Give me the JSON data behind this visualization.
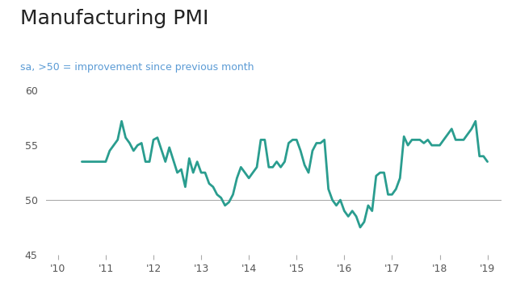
{
  "title": "Manufacturing PMI",
  "subtitle": "sa, >50 = improvement since previous month",
  "line_color": "#2a9d8f",
  "line_width": 2.0,
  "background_color": "#ffffff",
  "ylim": [
    45,
    60
  ],
  "yticks": [
    45,
    50,
    55,
    60
  ],
  "reference_line": 50,
  "title_fontsize": 18,
  "subtitle_fontsize": 9,
  "tick_label_color": "#555555",
  "subtitle_color": "#5b9bd5",
  "title_color": "#222222",
  "xtick_labels": [
    "'10",
    "'11",
    "'12",
    "'13",
    "'14",
    "'15",
    "'16",
    "'17",
    "'18",
    "'19"
  ],
  "xtick_positions": [
    2010,
    2011,
    2012,
    2013,
    2014,
    2015,
    2016,
    2017,
    2018,
    2019
  ],
  "dates": [
    2010.5,
    2011.0,
    2011.083,
    2011.25,
    2011.333,
    2011.417,
    2011.5,
    2011.583,
    2011.667,
    2011.75,
    2011.833,
    2011.917,
    2012.0,
    2012.083,
    2012.25,
    2012.333,
    2012.5,
    2012.583,
    2012.667,
    2012.75,
    2012.833,
    2012.917,
    2013.0,
    2013.083,
    2013.167,
    2013.25,
    2013.333,
    2013.417,
    2013.5,
    2013.583,
    2013.667,
    2013.75,
    2013.833,
    2013.917,
    2014.0,
    2014.083,
    2014.167,
    2014.25,
    2014.333,
    2014.417,
    2014.5,
    2014.583,
    2014.667,
    2014.75,
    2014.833,
    2014.917,
    2015.0,
    2015.083,
    2015.167,
    2015.25,
    2015.333,
    2015.417,
    2015.5,
    2015.583,
    2015.667,
    2015.75,
    2015.833,
    2015.917,
    2016.0,
    2016.083,
    2016.167,
    2016.25,
    2016.333,
    2016.417,
    2016.5,
    2016.583,
    2016.667,
    2016.75,
    2016.833,
    2016.917,
    2017.0,
    2017.083,
    2017.167,
    2017.25,
    2017.333,
    2017.417,
    2017.5,
    2017.583,
    2017.667,
    2017.75,
    2017.833,
    2017.917,
    2018.0,
    2018.083,
    2018.167,
    2018.25,
    2018.333,
    2018.417,
    2018.5,
    2018.583,
    2018.667,
    2018.75,
    2018.833,
    2018.917,
    2019.0
  ],
  "values": [
    53.5,
    53.5,
    54.5,
    55.5,
    57.2,
    55.7,
    55.2,
    54.5,
    55.0,
    55.2,
    53.5,
    53.5,
    55.5,
    55.7,
    53.5,
    54.8,
    52.5,
    52.8,
    51.2,
    53.8,
    52.5,
    53.5,
    52.5,
    52.5,
    51.5,
    51.2,
    50.5,
    50.2,
    49.5,
    49.8,
    50.5,
    52.0,
    53.0,
    52.5,
    52.0,
    52.5,
    53.0,
    55.5,
    55.5,
    53.0,
    53.0,
    53.5,
    53.0,
    53.5,
    55.2,
    55.5,
    55.5,
    54.5,
    53.2,
    52.5,
    54.5,
    55.2,
    55.2,
    55.5,
    51.0,
    50.0,
    49.5,
    50.0,
    49.0,
    48.5,
    49.0,
    48.5,
    47.5,
    48.0,
    49.5,
    49.0,
    52.2,
    52.5,
    52.5,
    50.5,
    50.5,
    51.0,
    52.0,
    55.8,
    55.0,
    55.5,
    55.5,
    55.5,
    55.2,
    55.5,
    55.0,
    55.0,
    55.0,
    55.5,
    56.0,
    56.5,
    55.5,
    55.5,
    55.5,
    56.0,
    56.5,
    57.2,
    54.0,
    54.0,
    53.5
  ]
}
